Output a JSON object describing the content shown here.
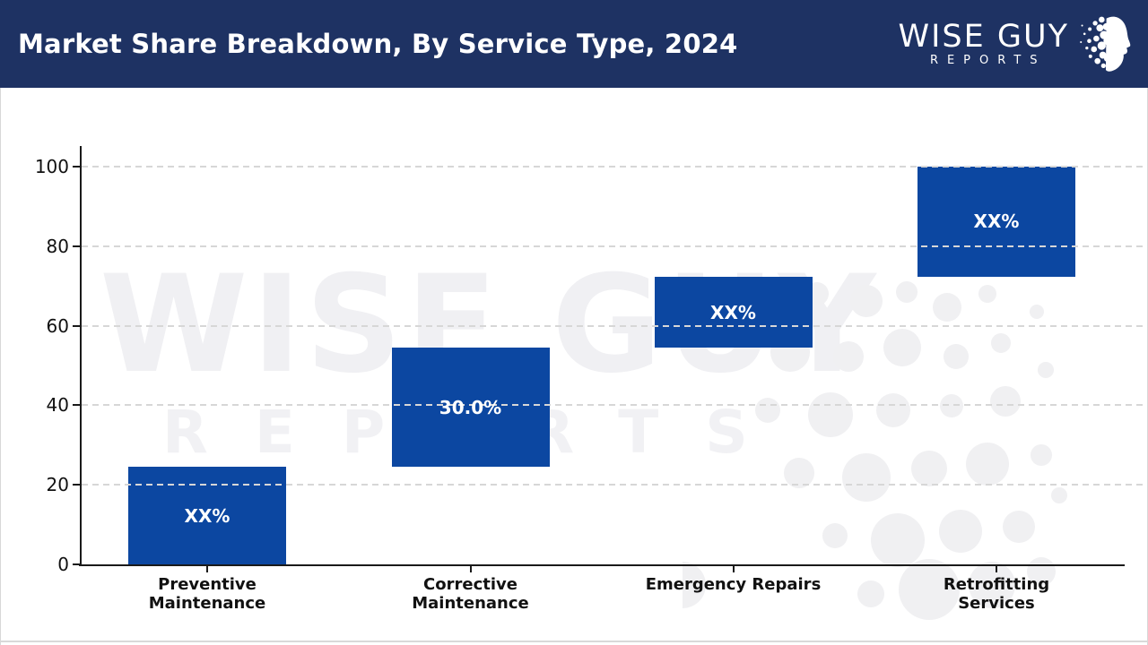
{
  "header": {
    "title": "Market Share Breakdown, By Service Type, 2024",
    "logo": {
      "line1": "WISE GUY",
      "line2": "REPORTS"
    }
  },
  "watermark": {
    "line1": "WISE GUY",
    "line2": "REPORTS"
  },
  "colors": {
    "header_bg": "#1e3263",
    "bar": "#0c47a1",
    "grid": "#d7d7d7",
    "axis": "#1a1a1a",
    "bar_label_text": "#ffffff",
    "watermark_gray": "#f0f0f3"
  },
  "chart_data": {
    "type": "bar",
    "subtype": "floating-waterfall",
    "title": "Market Share Breakdown, By Service Type, 2024",
    "categories": [
      "Preventive Maintenance",
      "Corrective Maintenance",
      "Emergency Repairs",
      "Retrofitting Services"
    ],
    "category_lines": [
      [
        "Preventive",
        "Maintenance"
      ],
      [
        "Corrective",
        "Maintenance"
      ],
      [
        "Emergency Repairs"
      ],
      [
        "Retrofitting",
        "Services"
      ]
    ],
    "bars": [
      {
        "category": "Preventive Maintenance",
        "start": 0,
        "end": 24.5,
        "label": "XX%"
      },
      {
        "category": "Corrective Maintenance",
        "start": 24.5,
        "end": 54.5,
        "label": "30.0%"
      },
      {
        "category": "Emergency Repairs",
        "start": 54.5,
        "end": 72.3,
        "label": "XX%"
      },
      {
        "category": "Retrofitting Services",
        "start": 72.3,
        "end": 100,
        "label": "XX%"
      }
    ],
    "yticks": [
      0,
      20,
      40,
      60,
      80,
      100
    ],
    "ytick_labels": [
      "0",
      "20",
      "40",
      "60",
      "80",
      "100"
    ],
    "ylim": [
      0,
      105
    ],
    "xlabel": "",
    "ylabel": "",
    "grid": {
      "horizontal": true,
      "style": "dashed"
    },
    "legend": null
  }
}
